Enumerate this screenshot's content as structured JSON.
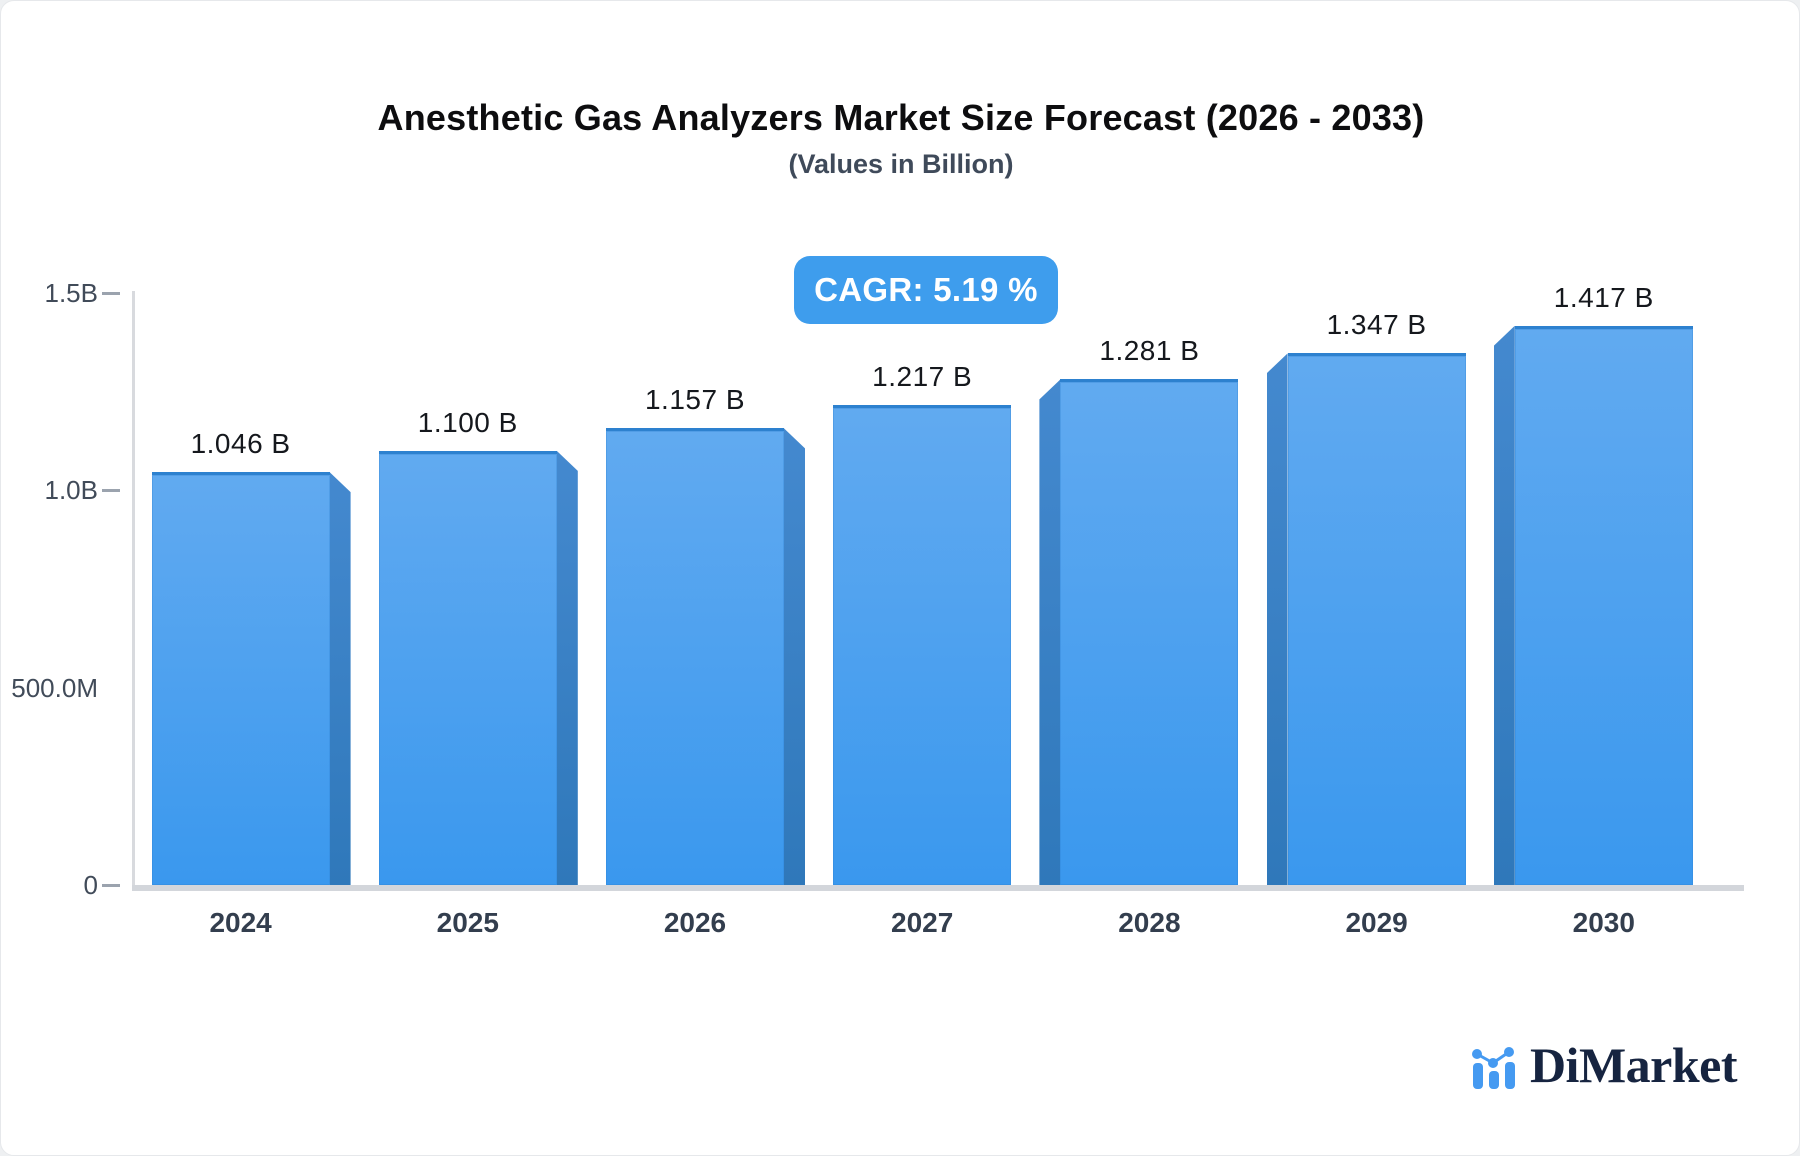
{
  "header": {
    "title": "Anesthetic Gas Analyzers Market Size Forecast (2026 - 2033)",
    "subtitle": "(Values in Billion)",
    "cagr_label": "CAGR: 5.19 %"
  },
  "chart_data": {
    "type": "bar",
    "title": "Anesthetic Gas Analyzers Market Size Forecast (2026 - 2033)",
    "subtitle": "(Values in Billion)",
    "unit": "Billion",
    "cagr": "5.19 %",
    "categories": [
      "2024",
      "2025",
      "2026",
      "2027",
      "2028",
      "2029",
      "2030"
    ],
    "values": [
      1.046,
      1.1,
      1.157,
      1.217,
      1.281,
      1.347,
      1.417
    ],
    "bar_labels": [
      "1.046 B",
      "1.100 B",
      "1.157 B",
      "1.217 B",
      "1.281 B",
      "1.347 B",
      "1.417 B"
    ],
    "ylim": [
      0,
      1.5
    ],
    "y_ticks": [
      {
        "label": "1.5B",
        "value": 1.5,
        "dash": true
      },
      {
        "label": "1.0B",
        "value": 1.0,
        "dash": true
      },
      {
        "label": "500.0M",
        "value": 0.5,
        "dash": false
      },
      {
        "label": "0",
        "value": 0.0,
        "dash": true
      }
    ],
    "grid": false,
    "legend": false,
    "style_3d": "beveled side wedge facing away from center, none on middle bar"
  },
  "theme": {
    "accent": "#3e9ded",
    "bar_top": "#61aaf0",
    "bar_bottom": "#3a98ee",
    "bar_edge": "#2d81cf",
    "wedge_top": "#4489cf",
    "wedge_bottom": "#2f78ba",
    "axis_line": "#d8dade",
    "baseline": "#d3d6db",
    "tick_dash": "#9ba3ae",
    "icon_blue": "#459af1"
  },
  "footer": {
    "brand": "DiMarket"
  }
}
